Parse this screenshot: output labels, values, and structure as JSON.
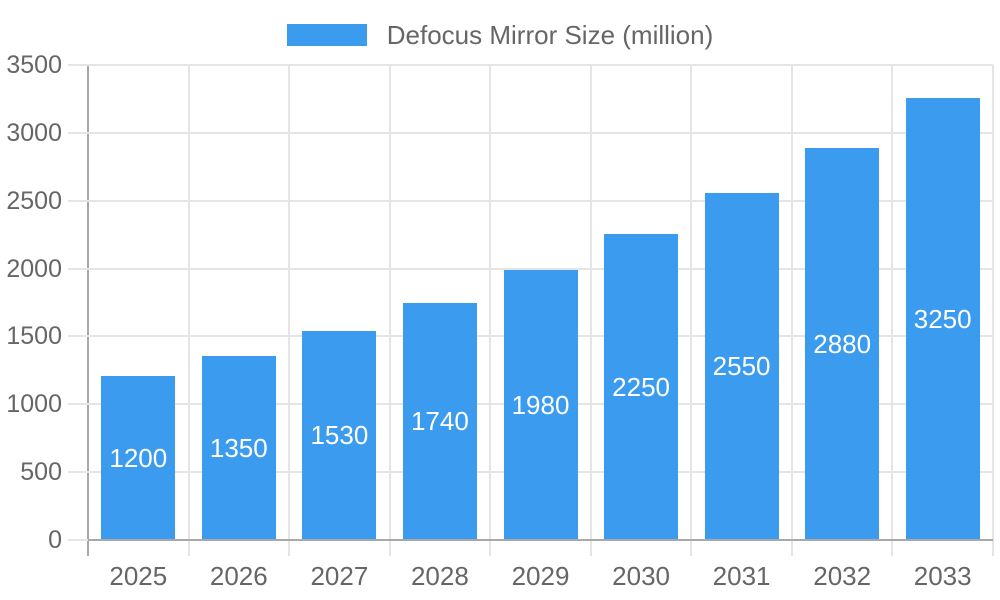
{
  "legend": {
    "label": "Defocus Mirror Size (million)"
  },
  "colors": {
    "bar": "#3b9bee",
    "grid": "#e5e5e5",
    "axis": "#a8a8a8",
    "text": "#666666",
    "value_label": "#ffffff",
    "background": "#ffffff"
  },
  "chart_data": {
    "type": "bar",
    "title": "",
    "legend": [
      "Defocus Mirror Size (million)"
    ],
    "legend_position": "top",
    "categories": [
      "2025",
      "2026",
      "2027",
      "2028",
      "2029",
      "2030",
      "2031",
      "2032",
      "2033"
    ],
    "series": [
      {
        "name": "Defocus Mirror Size (million)",
        "values": [
          1200,
          1350,
          1530,
          1740,
          1980,
          2250,
          2550,
          2880,
          3250
        ]
      }
    ],
    "value_labels_shown": true,
    "value_label_position": "center-of-bar",
    "xlabel": "",
    "ylabel": "",
    "ylim": [
      0,
      3500
    ],
    "yticks": [
      0,
      500,
      1000,
      1500,
      2000,
      2500,
      3000,
      3500
    ],
    "grid": true
  }
}
